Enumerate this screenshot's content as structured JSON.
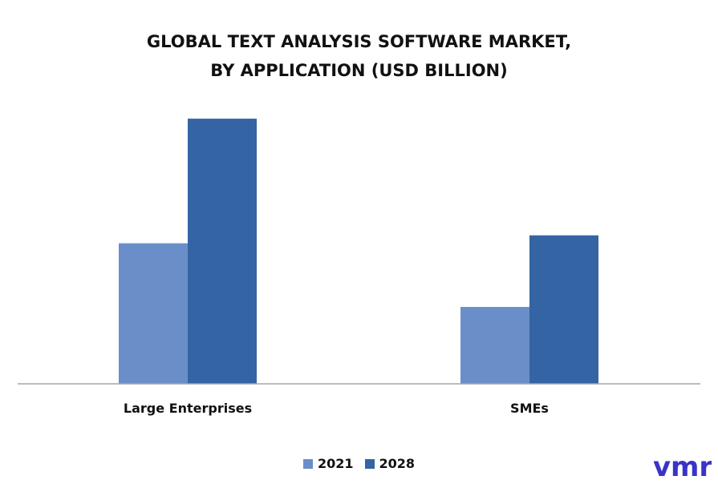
{
  "chart_data": {
    "type": "bar",
    "title": "GLOBAL TEXT ANALYSIS SOFTWARE MARKET,",
    "subtitle": "BY APPLICATION (USD BILLION)",
    "categories": [
      "Large Enterprises",
      "SMEs"
    ],
    "series": [
      {
        "name": "2021",
        "values": [
          5.3,
          2.9
        ],
        "color": "#6A8FC8"
      },
      {
        "name": "2028",
        "values": [
          10.0,
          5.6
        ],
        "color": "#3464A4"
      }
    ],
    "xlabel": "",
    "ylabel": "",
    "ylim": [
      0,
      11
    ],
    "grid": false,
    "legend_position": "bottom"
  },
  "axis_color": "#A6A6A6",
  "logo": {
    "text": "vmr",
    "color": "#3A33C9"
  }
}
